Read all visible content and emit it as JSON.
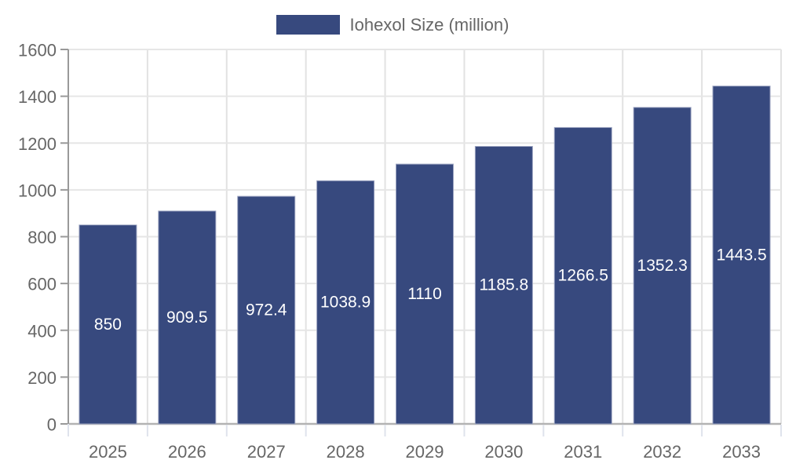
{
  "legend": {
    "label": "Iohexol Size (million)"
  },
  "chart_data": {
    "type": "bar",
    "title": "",
    "xlabel": "",
    "ylabel": "",
    "categories": [
      "2025",
      "2026",
      "2027",
      "2028",
      "2029",
      "2030",
      "2031",
      "2032",
      "2033"
    ],
    "series": [
      {
        "name": "Iohexol Size (million)",
        "values": [
          850,
          909.5,
          972.4,
          1038.9,
          1110,
          1185.8,
          1266.5,
          1352.3,
          1443.5
        ]
      }
    ],
    "value_labels": [
      "850",
      "909.5",
      "972.4",
      "1038.9",
      "1110",
      "1185.8",
      "1266.5",
      "1352.3",
      "1443.5"
    ],
    "ylim": [
      0,
      1600
    ],
    "ytick_interval": 200,
    "ytick_labels": [
      "0",
      "200",
      "400",
      "600",
      "800",
      "1000",
      "1200",
      "1400",
      "1600"
    ],
    "grid": "horizontal-and-vertical",
    "legend_position": "top-center",
    "colors": {
      "bar": "#37497E",
      "bar_border": "#9BA3C0",
      "value_label_text": "#ffffff",
      "axis_text": "#666666",
      "legend_text": "#666666",
      "gridline": "#e6e6e6",
      "vertical_gridline": "#e2e2e2",
      "axis_line": "#999999",
      "baseline": "#b3b3b3",
      "x_tick": "#dfe3ec",
      "background": "#ffffff"
    }
  }
}
